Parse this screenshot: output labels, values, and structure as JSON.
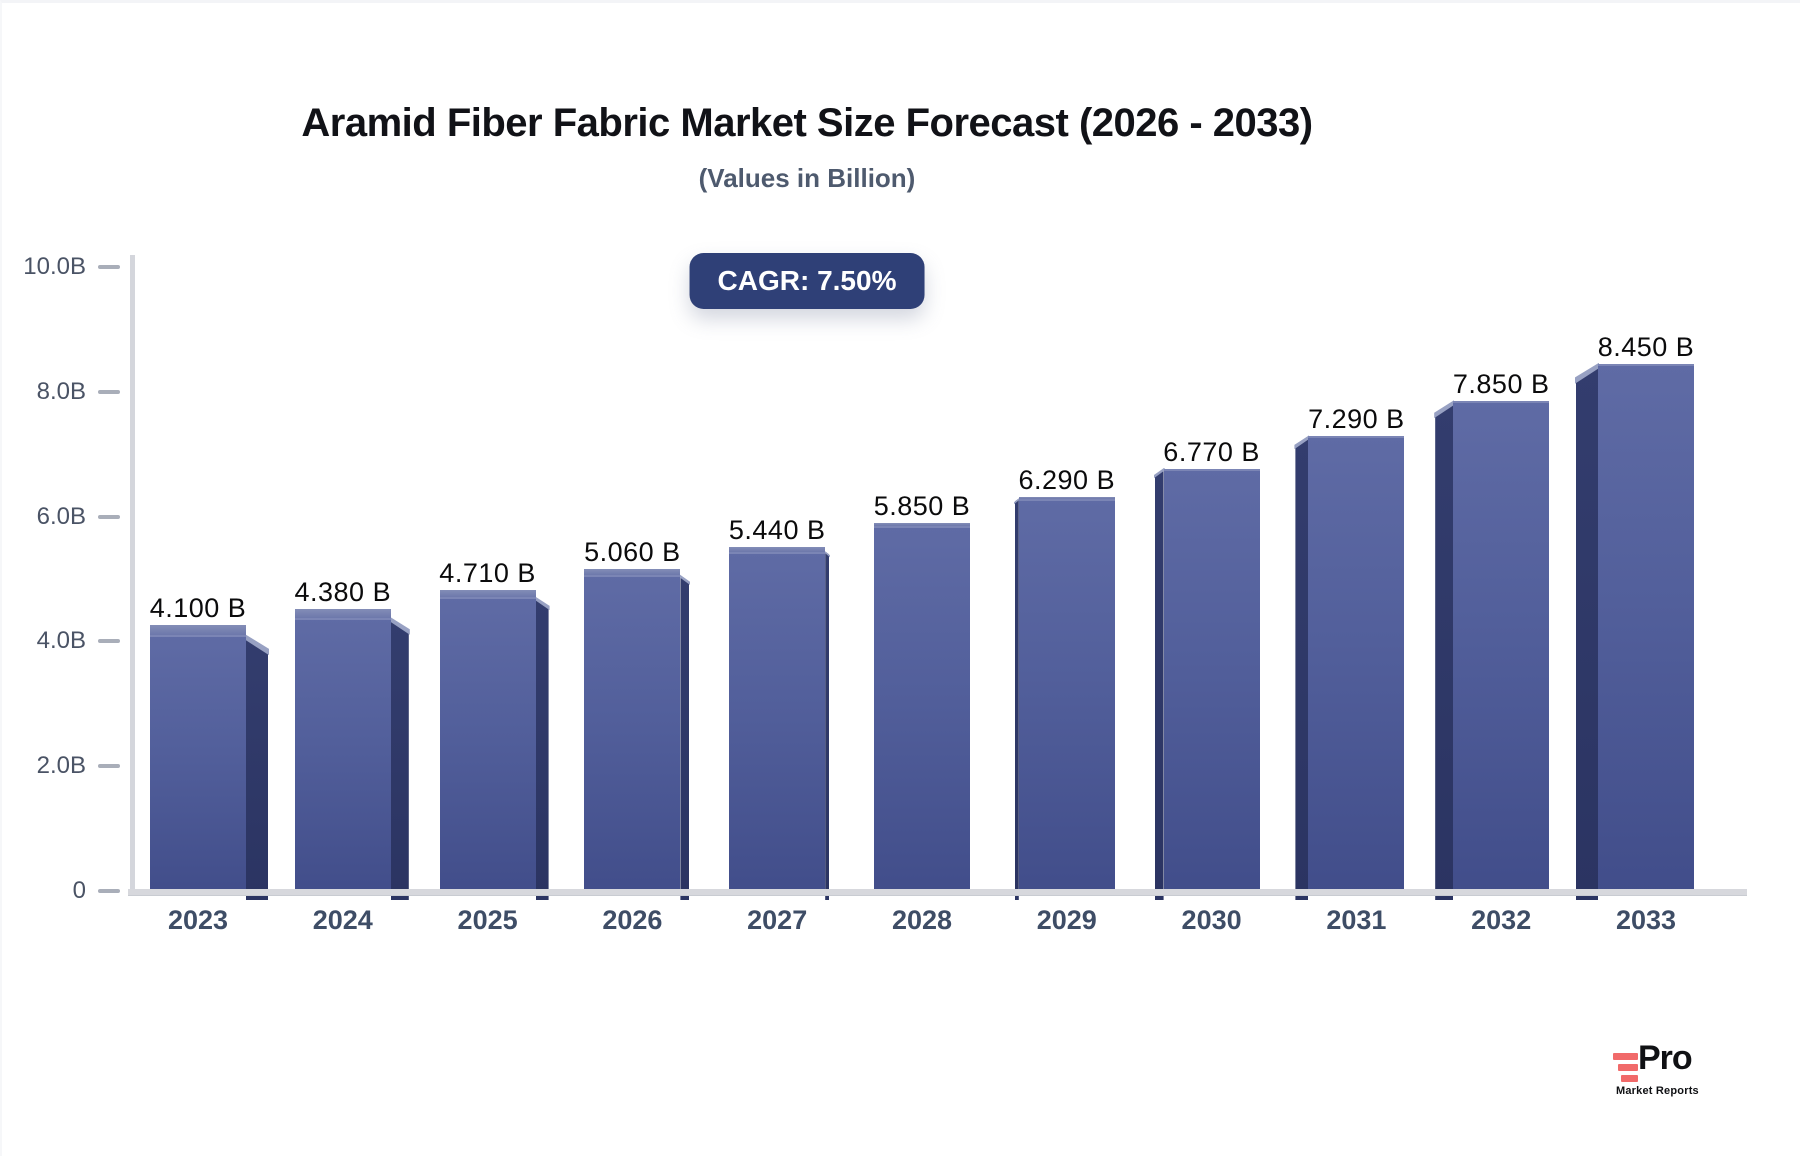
{
  "title": "Aramid Fiber Fabric Market Size Forecast (2026 - 2033)",
  "subtitle": "(Values in Billion)",
  "cagr_badge": "CAGR: 7.50%",
  "chart_data": {
    "type": "bar",
    "title": "Aramid Fiber Fabric Market Size Forecast (2026 - 2033)",
    "subtitle": "(Values in Billion)",
    "annotation": "CAGR: 7.50%",
    "categories": [
      "2023",
      "2024",
      "2025",
      "2026",
      "2027",
      "2028",
      "2029",
      "2030",
      "2031",
      "2032",
      "2033"
    ],
    "values": [
      4.1,
      4.38,
      4.71,
      5.06,
      5.44,
      5.85,
      6.29,
      6.77,
      7.29,
      7.85,
      8.45
    ],
    "value_labels": [
      "4.100 B",
      "4.380 B",
      "4.710 B",
      "5.060 B",
      "5.440 B",
      "5.850 B",
      "6.290 B",
      "6.770 B",
      "7.290 B",
      "7.850 B",
      "8.450 B"
    ],
    "unit": "Billion",
    "ylabel_ticks": [
      "0",
      "2.0B",
      "4.0B",
      "6.0B",
      "8.0B",
      "10.0B"
    ],
    "ytick_values": [
      0,
      2,
      4,
      6,
      8,
      10
    ],
    "ylim": [
      0,
      10
    ],
    "grid": false,
    "legend": "none",
    "style": "3d-perspective-bars"
  },
  "colors": {
    "bar_front_top": "#5f6ba5",
    "bar_front_mid": "#525f9b",
    "bar_front_bottom": "#414d8a",
    "bar_side_top": "#333d6e",
    "bar_side_bottom": "#2b3462",
    "bar_top_face_light": "#838db7",
    "bar_top_face_dark": "#6d78ab",
    "bar_bevel": "#98a1c3",
    "badge_bg": "#2f4077",
    "badge_text": "#ffffff",
    "axis_line": "#d4d6dc",
    "tick_text": "#4a5365",
    "year_text": "#3e4d66",
    "value_text": "#0b0b0c",
    "logo_accent": "#f16a6a"
  },
  "logo": {
    "brand": "Pro",
    "tagline": "Market Reports"
  }
}
